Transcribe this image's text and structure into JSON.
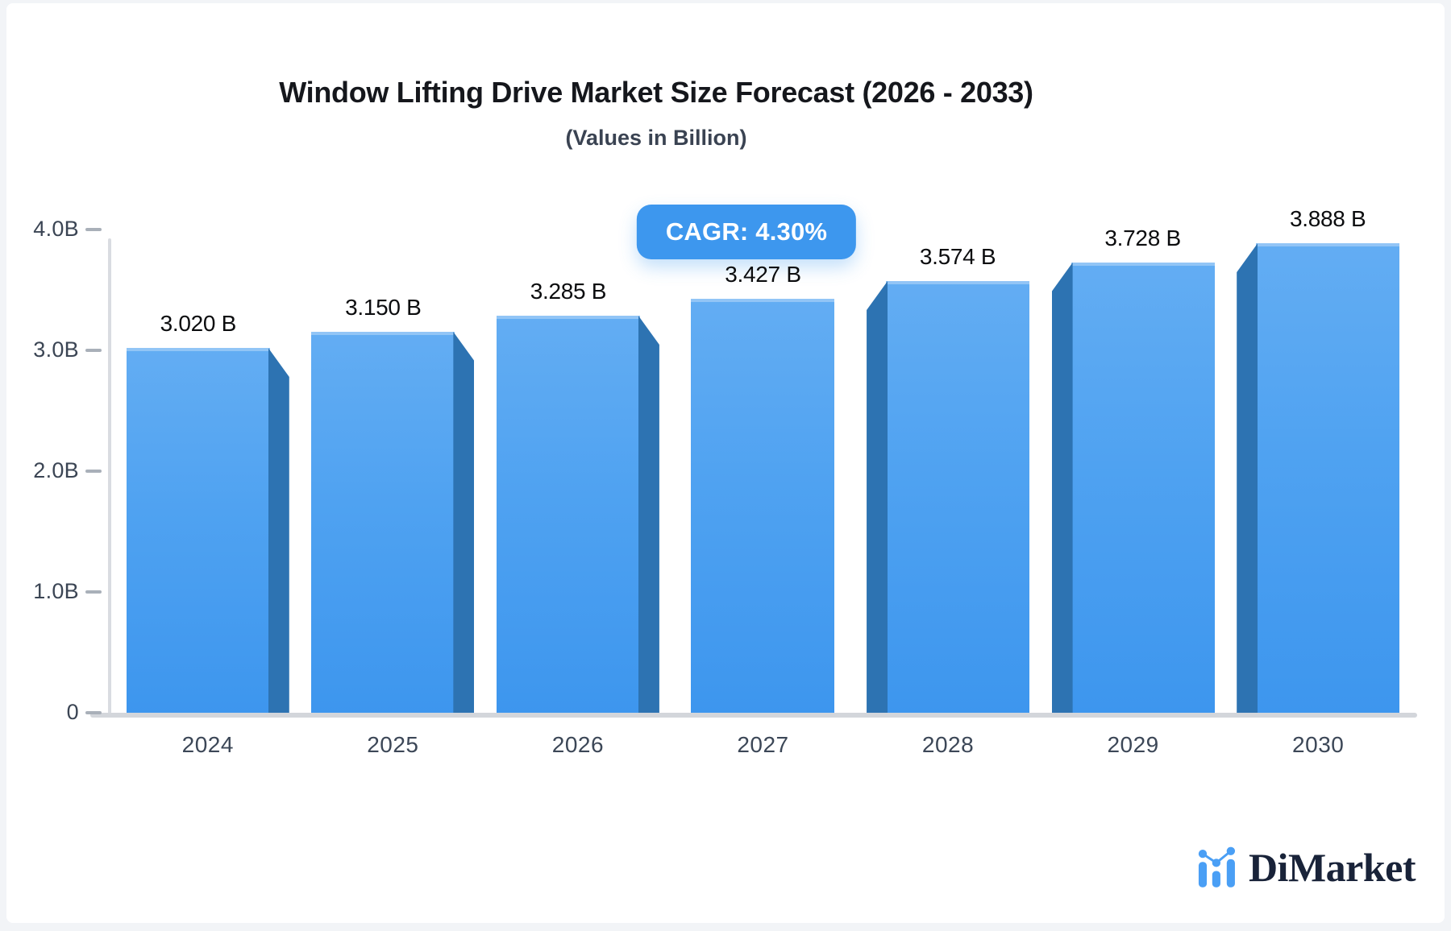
{
  "title": "Window Lifting Drive Market Size Forecast (2026 - 2033)",
  "subtitle": "(Values in Billion)",
  "badge": {
    "label": "CAGR: 4.30%",
    "color": "#3D97EE"
  },
  "chart_data": {
    "type": "bar",
    "categories": [
      "2024",
      "2025",
      "2026",
      "2027",
      "2028",
      "2029",
      "2030"
    ],
    "values": [
      3.02,
      3.15,
      3.285,
      3.427,
      3.574,
      3.728,
      3.888
    ],
    "value_labels": [
      "3.020 B",
      "3.150 B",
      "3.285 B",
      "3.427 B",
      "3.574 B",
      "3.728 B",
      "3.888 B"
    ],
    "title": "Window Lifting Drive Market Size Forecast (2026 - 2033)",
    "xlabel": "",
    "ylabel": "",
    "ylim": [
      0,
      4.0
    ],
    "yticks": [
      {
        "v": 0,
        "label": "0"
      },
      {
        "v": 1,
        "label": "1.0B"
      },
      {
        "v": 2,
        "label": "2.0B"
      },
      {
        "v": 3,
        "label": "3.0B"
      },
      {
        "v": 4,
        "label": "4.0B"
      }
    ],
    "grid": false,
    "legend": null,
    "colors": {
      "bar_face_top": "#63ADF3",
      "bar_face_mid": "#4FA2F1",
      "bar_face_bottom": "#3D96EE",
      "bar_side_shadow": "#2D73B2",
      "axis_line": "#d3d6db",
      "tick_text": "#3b4554"
    }
  },
  "logo": {
    "text": "DiMarket",
    "icon": "mini-bar-chart-icon",
    "text_color": "#192339",
    "accent_color": "#4A9FF5"
  }
}
